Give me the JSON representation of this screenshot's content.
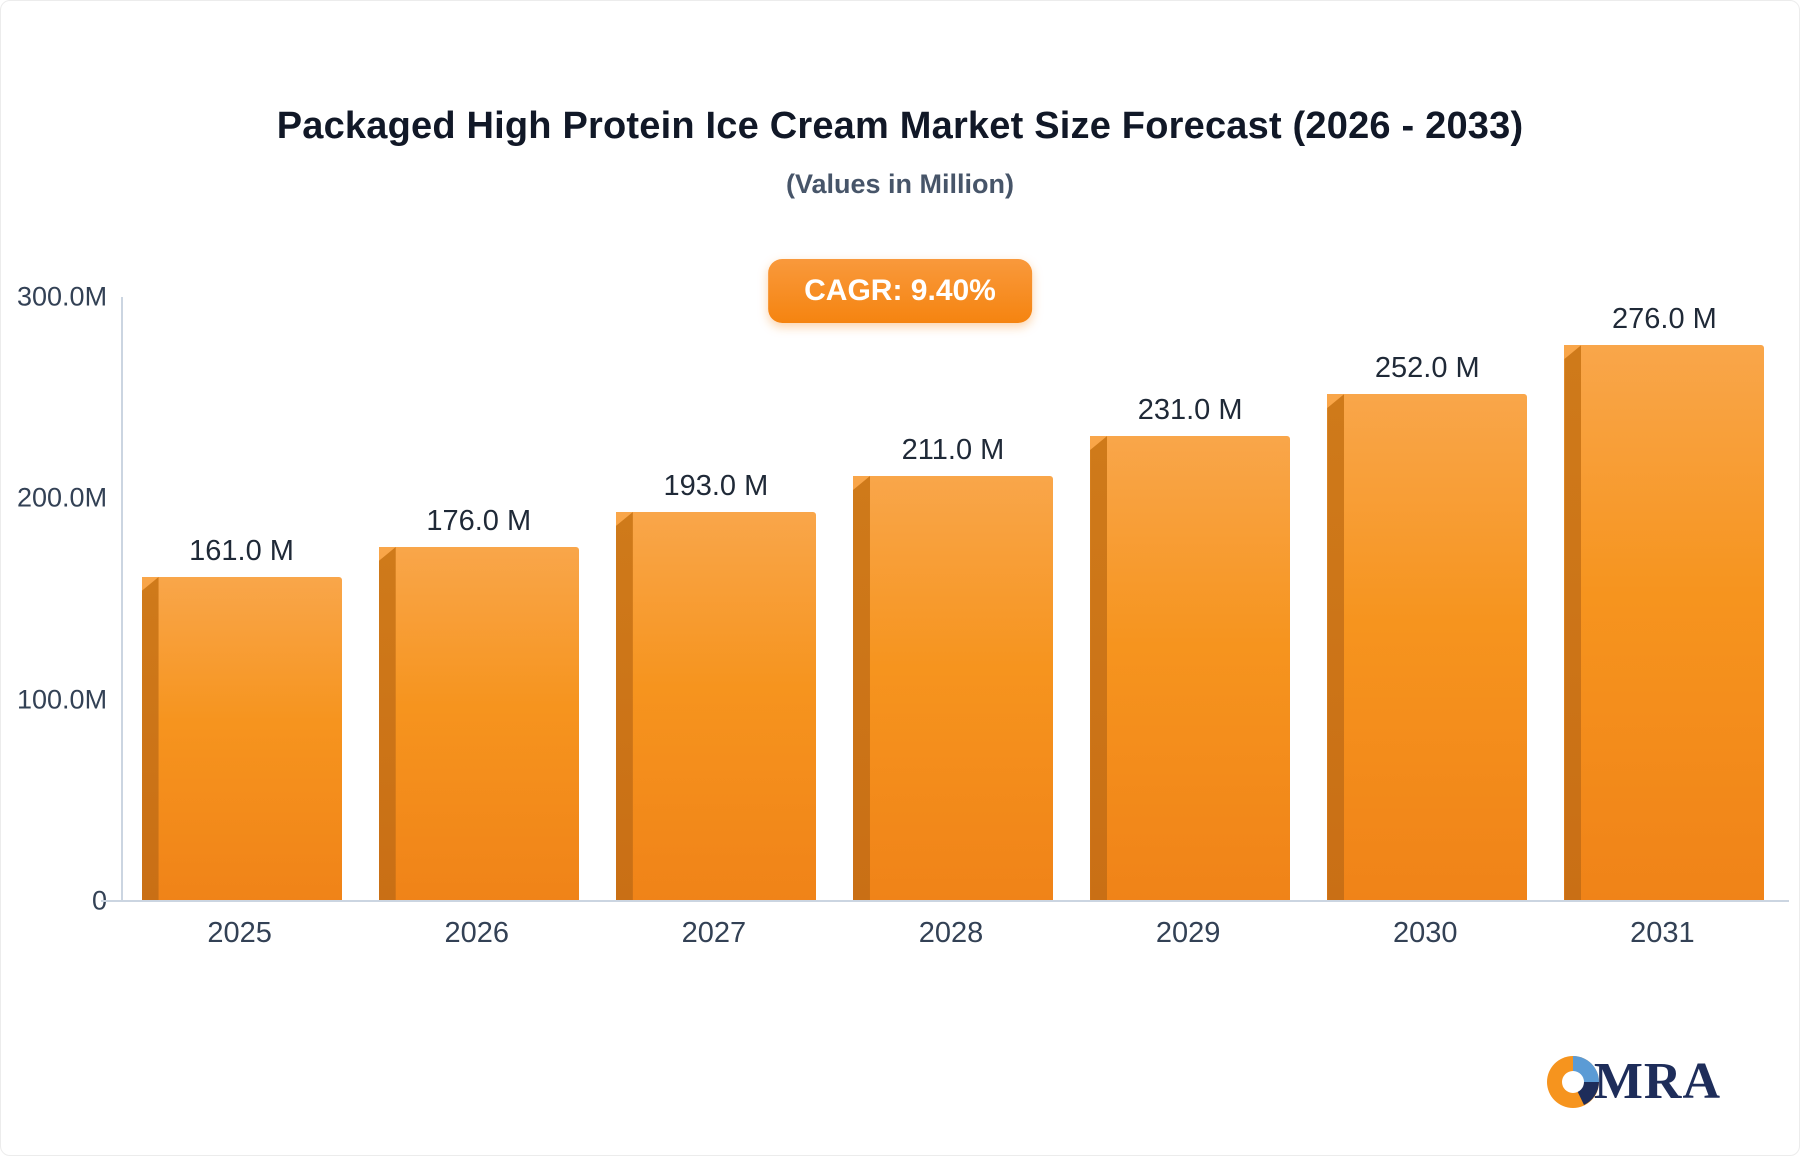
{
  "page": {
    "title": "Packaged High Protein Ice Cream Market Size Forecast (2026 - 2033)",
    "subtitle": "(Values in Million)",
    "cagr_badge": "CAGR: 9.40%",
    "logo_text": "MRA",
    "colors": {
      "bar_main": "#f6941e",
      "bar_side": "#c96f15",
      "badge_bg": "#f58410",
      "logo_navy": "#1e2d5a",
      "axis_gray": "#cbd5e1"
    }
  },
  "chart_data": {
    "type": "bar",
    "title": "Packaged High Protein Ice Cream Market Size Forecast (2026 - 2033)",
    "subtitle": "(Values in Million)",
    "categories": [
      "2025",
      "2026",
      "2027",
      "2028",
      "2029",
      "2030",
      "2031"
    ],
    "values": [
      161.0,
      176.0,
      193.0,
      211.0,
      231.0,
      252.0,
      276.0
    ],
    "value_labels": [
      "161.0 M",
      "176.0 M",
      "193.0 M",
      "211.0 M",
      "231.0 M",
      "252.0 M",
      "276.0 M"
    ],
    "xlabel": "",
    "ylabel": "",
    "ylim": [
      0,
      300
    ],
    "yticks": [
      {
        "label": "300.0M",
        "value": 300
      },
      {
        "label": "200.0M",
        "value": 200
      },
      {
        "label": "100.0M",
        "value": 100
      },
      {
        "label": "0",
        "value": 0
      }
    ],
    "grid": false,
    "legend": false,
    "annotation": "CAGR: 9.40%"
  }
}
